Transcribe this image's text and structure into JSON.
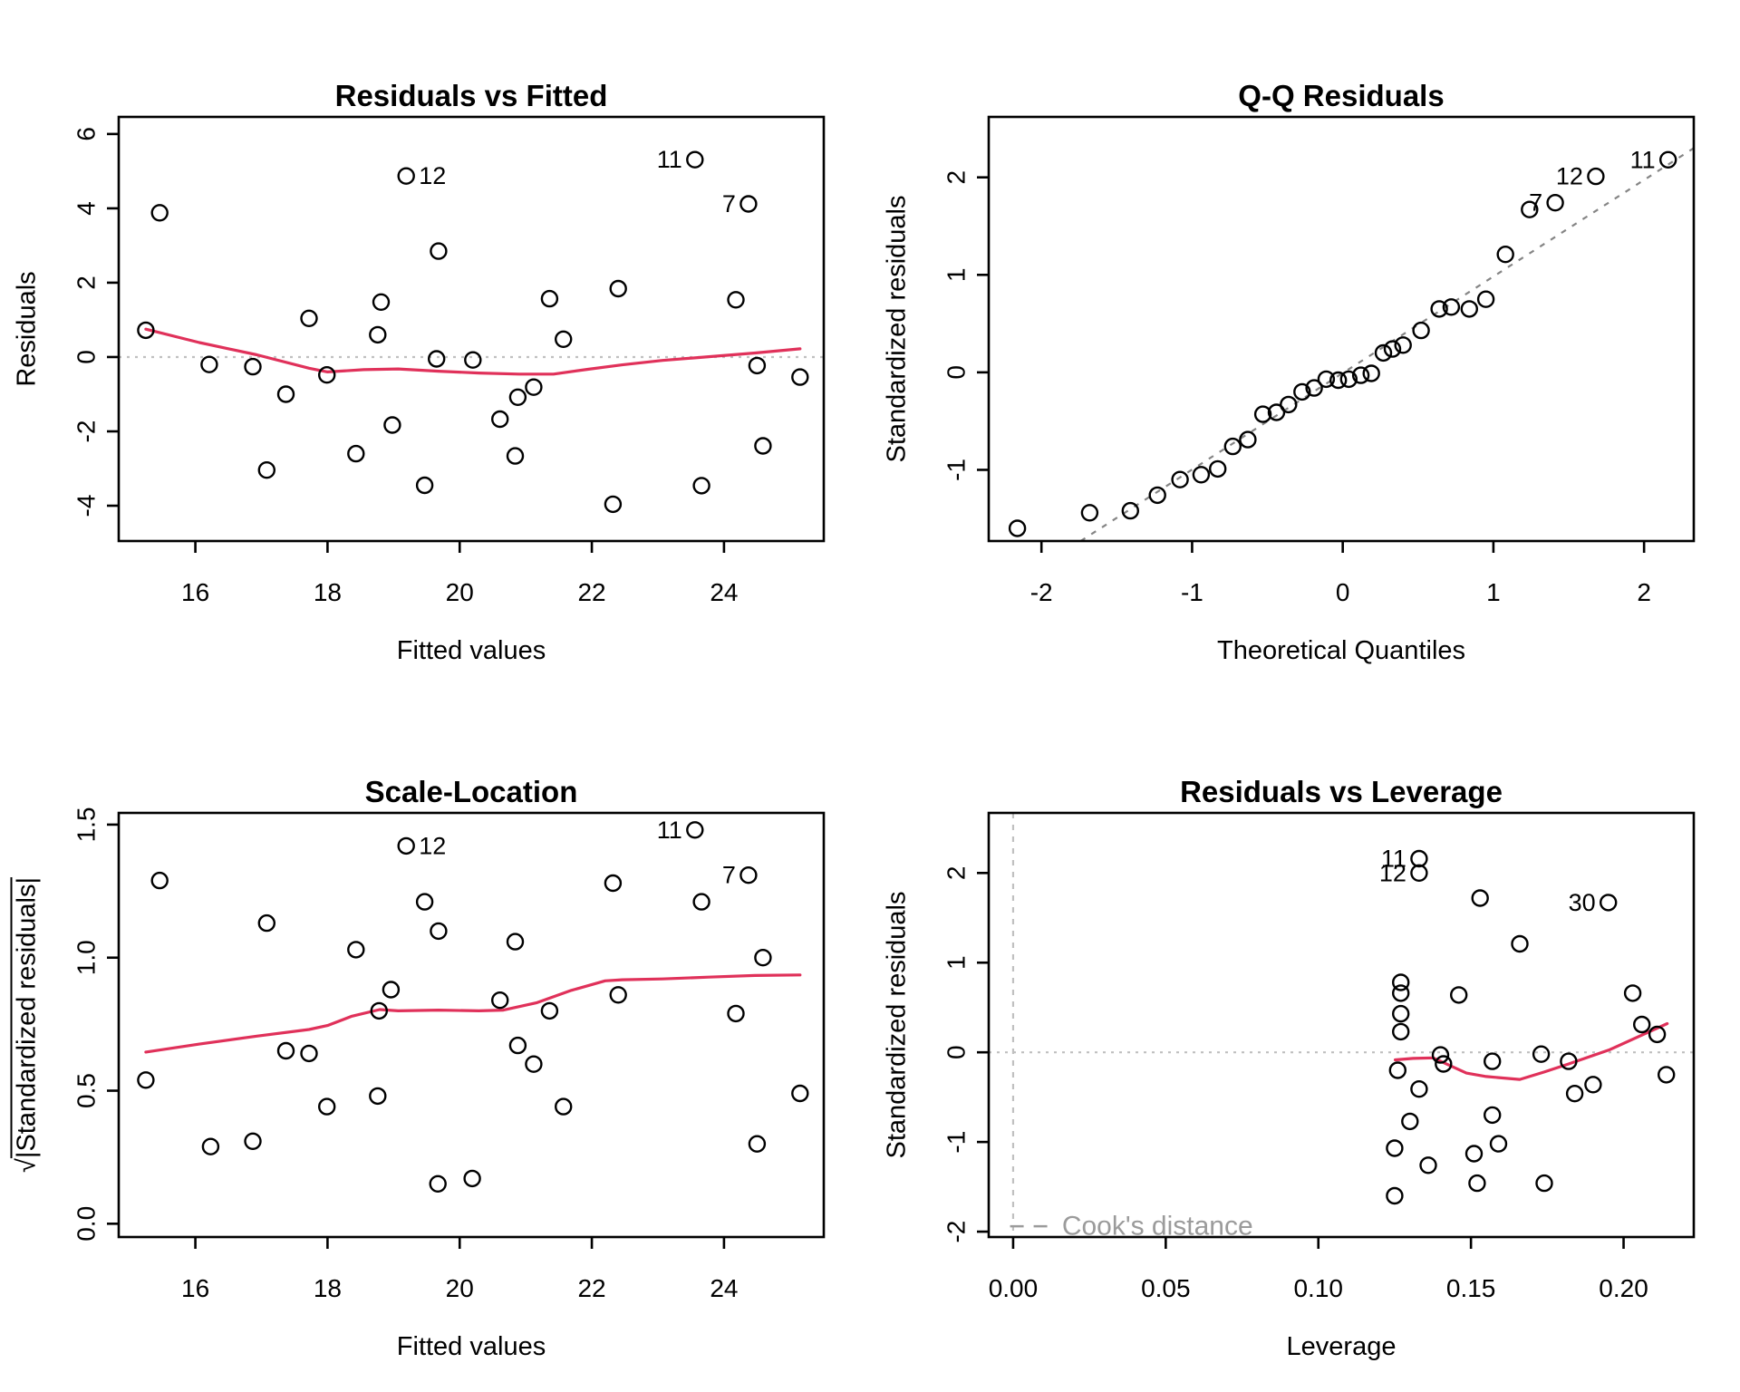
{
  "figure_title": "Linear model diagnostic plots (2x2)",
  "colors": {
    "background": "#ffffff",
    "smooth_line": "#e0315a",
    "reference_gray": "#c0c0c0",
    "qq_line_gray": "#858585",
    "cooks_label_gray": "#9b9b9b",
    "point_stroke": "#000000",
    "text": "#000000"
  },
  "chart_data": [
    {
      "type": "scatter",
      "title": "Residuals vs Fitted",
      "xlabel": "Fitted values",
      "ylabel": "Residuals",
      "xlim": [
        14.84,
        25.51
      ],
      "ylim": [
        -4.95,
        6.46
      ],
      "grid": "off",
      "xticks": [
        {
          "v": 16,
          "label": "16"
        },
        {
          "v": 18,
          "label": "18"
        },
        {
          "v": 20,
          "label": "20"
        },
        {
          "v": 22,
          "label": "22"
        },
        {
          "v": 24,
          "label": "24"
        }
      ],
      "yticks": [
        {
          "v": -4,
          "label": "-4"
        },
        {
          "v": -2,
          "label": "-2"
        },
        {
          "v": 0,
          "label": "0"
        },
        {
          "v": 2,
          "label": "2"
        },
        {
          "v": 4,
          "label": "4"
        },
        {
          "v": 6,
          "label": "6"
        }
      ],
      "zero_line_y": 0,
      "points": [
        [
          15.46,
          3.88
        ],
        [
          15.25,
          0.72
        ],
        [
          16.21,
          -0.2
        ],
        [
          16.87,
          -0.26
        ],
        [
          17.08,
          -3.04
        ],
        [
          17.37,
          -1.0
        ],
        [
          17.72,
          1.04
        ],
        [
          17.99,
          -0.48
        ],
        [
          18.43,
          -2.6
        ],
        [
          18.81,
          1.48
        ],
        [
          18.76,
          0.6
        ],
        [
          18.98,
          -1.83
        ],
        [
          19.47,
          -3.45
        ],
        [
          19.68,
          2.85
        ],
        [
          19.65,
          -0.05
        ],
        [
          20.2,
          -0.08
        ],
        [
          20.61,
          -1.67
        ],
        [
          20.84,
          -2.66
        ],
        [
          20.88,
          -1.08
        ],
        [
          21.12,
          -0.81
        ],
        [
          21.36,
          1.57
        ],
        [
          21.57,
          0.48
        ],
        [
          22.4,
          1.84
        ],
        [
          22.32,
          -3.96
        ],
        [
          23.66,
          -3.46
        ],
        [
          24.18,
          1.54
        ],
        [
          24.5,
          -0.23
        ],
        [
          24.59,
          -2.39
        ],
        [
          25.15,
          -0.54
        ]
      ],
      "labeled_points": [
        {
          "label": "12",
          "x": 19.19,
          "y": 4.87,
          "side": "right"
        },
        {
          "label": "11",
          "x": 23.56,
          "y": 5.31,
          "side": "left"
        },
        {
          "label": "7",
          "x": 24.37,
          "y": 4.12,
          "side": "left"
        }
      ],
      "smooth_line": [
        [
          15.25,
          0.75
        ],
        [
          16.06,
          0.39
        ],
        [
          16.93,
          0.06
        ],
        [
          17.72,
          -0.3
        ],
        [
          18.0,
          -0.4
        ],
        [
          18.55,
          -0.34
        ],
        [
          19.07,
          -0.32
        ],
        [
          19.68,
          -0.38
        ],
        [
          20.29,
          -0.43
        ],
        [
          20.9,
          -0.46
        ],
        [
          21.42,
          -0.46
        ],
        [
          21.94,
          -0.33
        ],
        [
          22.46,
          -0.21
        ],
        [
          23.07,
          -0.09
        ],
        [
          23.77,
          0.01
        ],
        [
          24.47,
          0.11
        ],
        [
          25.15,
          0.22
        ]
      ]
    },
    {
      "type": "scatter",
      "title": "Q-Q Residuals",
      "xlabel": "Theoretical Quantiles",
      "ylabel": "Standardized residuals",
      "xlim": [
        -2.35,
        2.33
      ],
      "ylim": [
        -1.73,
        2.62
      ],
      "grid": "off",
      "xticks": [
        {
          "v": -2,
          "label": "-2"
        },
        {
          "v": -1,
          "label": "-1"
        },
        {
          "v": 0,
          "label": "0"
        },
        {
          "v": 1,
          "label": "1"
        },
        {
          "v": 2,
          "label": "2"
        }
      ],
      "yticks": [
        {
          "v": -1,
          "label": "-1"
        },
        {
          "v": 0,
          "label": "0"
        },
        {
          "v": 1,
          "label": "1"
        },
        {
          "v": 2,
          "label": "2"
        }
      ],
      "diag_line": [
        [
          -1.74,
          -1.73
        ],
        [
          2.33,
          2.3
        ]
      ],
      "points": [
        [
          -2.16,
          -1.6
        ],
        [
          -1.68,
          -1.44
        ],
        [
          -1.41,
          -1.42
        ],
        [
          -1.23,
          -1.26
        ],
        [
          -1.08,
          -1.1
        ],
        [
          -0.94,
          -1.05
        ],
        [
          -0.83,
          -0.99
        ],
        [
          -0.73,
          -0.76
        ],
        [
          -0.63,
          -0.69
        ],
        [
          -0.53,
          -0.43
        ],
        [
          -0.44,
          -0.41
        ],
        [
          -0.36,
          -0.33
        ],
        [
          -0.27,
          -0.2
        ],
        [
          -0.19,
          -0.16
        ],
        [
          -0.11,
          -0.07
        ],
        [
          -0.03,
          -0.08
        ],
        [
          0.04,
          -0.07
        ],
        [
          0.12,
          -0.03
        ],
        [
          0.19,
          -0.01
        ],
        [
          0.27,
          0.2
        ],
        [
          0.33,
          0.24
        ],
        [
          0.4,
          0.28
        ],
        [
          0.52,
          0.43
        ],
        [
          0.64,
          0.65
        ],
        [
          0.72,
          0.67
        ],
        [
          0.84,
          0.65
        ],
        [
          0.95,
          0.75
        ],
        [
          1.08,
          1.21
        ],
        [
          1.24,
          1.67
        ]
      ],
      "labeled_points": [
        {
          "label": "7",
          "x": 1.41,
          "y": 1.74,
          "side": "left"
        },
        {
          "label": "12",
          "x": 1.68,
          "y": 2.01,
          "side": "left"
        },
        {
          "label": "11",
          "x": 2.16,
          "y": 2.18,
          "side": "left"
        }
      ]
    },
    {
      "type": "scatter",
      "title": "Scale-Location",
      "xlabel": "Fitted values",
      "ylabel": "√|Standardized residuals|",
      "ylabel_radical": "√",
      "ylabel_overline": "|Standardized residuals|",
      "xlim": [
        14.84,
        25.51
      ],
      "ylim": [
        -0.05,
        1.544
      ],
      "grid": "off",
      "xticks": [
        {
          "v": 16,
          "label": "16"
        },
        {
          "v": 18,
          "label": "18"
        },
        {
          "v": 20,
          "label": "20"
        },
        {
          "v": 22,
          "label": "22"
        },
        {
          "v": 24,
          "label": "24"
        }
      ],
      "yticks": [
        {
          "v": 0,
          "label": "0.0"
        },
        {
          "v": 0.5,
          "label": "0.5"
        },
        {
          "v": 1,
          "label": "1.0"
        },
        {
          "v": 1.5,
          "label": "1.5"
        }
      ],
      "points": [
        [
          15.46,
          1.29
        ],
        [
          15.25,
          0.54
        ],
        [
          16.23,
          0.29
        ],
        [
          16.87,
          0.31
        ],
        [
          17.08,
          1.13
        ],
        [
          17.37,
          0.65
        ],
        [
          17.72,
          0.64
        ],
        [
          17.99,
          0.44
        ],
        [
          18.43,
          1.03
        ],
        [
          18.78,
          0.8
        ],
        [
          18.76,
          0.48
        ],
        [
          18.96,
          0.88
        ],
        [
          19.47,
          1.21
        ],
        [
          19.68,
          1.1
        ],
        [
          19.67,
          0.15
        ],
        [
          20.19,
          0.17
        ],
        [
          20.61,
          0.84
        ],
        [
          20.84,
          1.06
        ],
        [
          20.88,
          0.67
        ],
        [
          21.12,
          0.6
        ],
        [
          21.36,
          0.8
        ],
        [
          21.57,
          0.44
        ],
        [
          22.4,
          0.86
        ],
        [
          22.32,
          1.28
        ],
        [
          23.66,
          1.21
        ],
        [
          24.18,
          0.79
        ],
        [
          24.5,
          0.3
        ],
        [
          24.59,
          1.0
        ],
        [
          25.15,
          0.49
        ]
      ],
      "labeled_points": [
        {
          "label": "12",
          "x": 19.19,
          "y": 1.42,
          "side": "right"
        },
        {
          "label": "11",
          "x": 23.56,
          "y": 1.48,
          "side": "left"
        },
        {
          "label": "7",
          "x": 24.37,
          "y": 1.31,
          "side": "left"
        }
      ],
      "smooth_line": [
        [
          15.25,
          0.645
        ],
        [
          16.06,
          0.675
        ],
        [
          16.93,
          0.705
        ],
        [
          17.72,
          0.73
        ],
        [
          18.0,
          0.745
        ],
        [
          18.37,
          0.78
        ],
        [
          18.79,
          0.805
        ],
        [
          19.07,
          0.8
        ],
        [
          19.68,
          0.803
        ],
        [
          20.29,
          0.8
        ],
        [
          20.66,
          0.803
        ],
        [
          21.16,
          0.83
        ],
        [
          21.69,
          0.877
        ],
        [
          22.2,
          0.913
        ],
        [
          22.46,
          0.917
        ],
        [
          23.07,
          0.92
        ],
        [
          23.77,
          0.927
        ],
        [
          24.47,
          0.933
        ],
        [
          25.15,
          0.935
        ]
      ]
    },
    {
      "type": "scatter",
      "title": "Residuals vs Leverage",
      "xlabel": "Leverage",
      "ylabel": "Standardized residuals",
      "xlim": [
        -0.008,
        0.223
      ],
      "ylim": [
        -2.06,
        2.67
      ],
      "grid": "off",
      "xticks": [
        {
          "v": 0,
          "label": "0.00"
        },
        {
          "v": 0.05,
          "label": "0.05"
        },
        {
          "v": 0.1,
          "label": "0.10"
        },
        {
          "v": 0.15,
          "label": "0.15"
        },
        {
          "v": 0.2,
          "label": "0.20"
        }
      ],
      "yticks": [
        {
          "v": -2,
          "label": "-2"
        },
        {
          "v": -1,
          "label": "-1"
        },
        {
          "v": 0,
          "label": "0"
        },
        {
          "v": 1,
          "label": "1"
        },
        {
          "v": 2,
          "label": "2"
        }
      ],
      "zero_line_y": 0,
      "vline_x": 0,
      "cooks_legend": {
        "label": "Cook's distance",
        "dash_x": [
          -0.001,
          0.0142
        ],
        "text_x": 0.016,
        "y": -1.94
      },
      "points": [
        [
          0.153,
          1.72
        ],
        [
          0.166,
          1.21
        ],
        [
          0.127,
          0.78
        ],
        [
          0.127,
          0.66
        ],
        [
          0.127,
          0.43
        ],
        [
          0.127,
          0.23
        ],
        [
          0.126,
          -0.2
        ],
        [
          0.125,
          -1.6
        ],
        [
          0.125,
          -1.07
        ],
        [
          0.146,
          0.64
        ],
        [
          0.203,
          0.66
        ],
        [
          0.14,
          -0.03
        ],
        [
          0.141,
          -0.13
        ],
        [
          0.157,
          -0.1
        ],
        [
          0.173,
          -0.02
        ],
        [
          0.182,
          -0.1
        ],
        [
          0.133,
          -0.41
        ],
        [
          0.206,
          0.31
        ],
        [
          0.211,
          0.2
        ],
        [
          0.214,
          -0.25
        ],
        [
          0.184,
          -0.46
        ],
        [
          0.19,
          -0.36
        ],
        [
          0.13,
          -0.77
        ],
        [
          0.157,
          -0.7
        ],
        [
          0.159,
          -1.02
        ],
        [
          0.151,
          -1.13
        ],
        [
          0.136,
          -1.26
        ],
        [
          0.152,
          -1.46
        ],
        [
          0.174,
          -1.46
        ]
      ],
      "labeled_points": [
        {
          "label": "11",
          "x": 0.133,
          "y": 2.16,
          "side": "left"
        },
        {
          "label": "12",
          "x": 0.133,
          "y": 2.0,
          "side": "left"
        },
        {
          "label": "30",
          "x": 0.195,
          "y": 1.67,
          "side": "left"
        }
      ],
      "smooth_line": [
        [
          0.1252,
          -0.084
        ],
        [
          0.131,
          -0.068
        ],
        [
          0.1376,
          -0.062
        ],
        [
          0.1485,
          -0.232
        ],
        [
          0.155,
          -0.27
        ],
        [
          0.166,
          -0.302
        ],
        [
          0.174,
          -0.22
        ],
        [
          0.182,
          -0.13
        ],
        [
          0.1955,
          0.03
        ],
        [
          0.2065,
          0.2
        ],
        [
          0.2143,
          0.32
        ]
      ]
    }
  ]
}
